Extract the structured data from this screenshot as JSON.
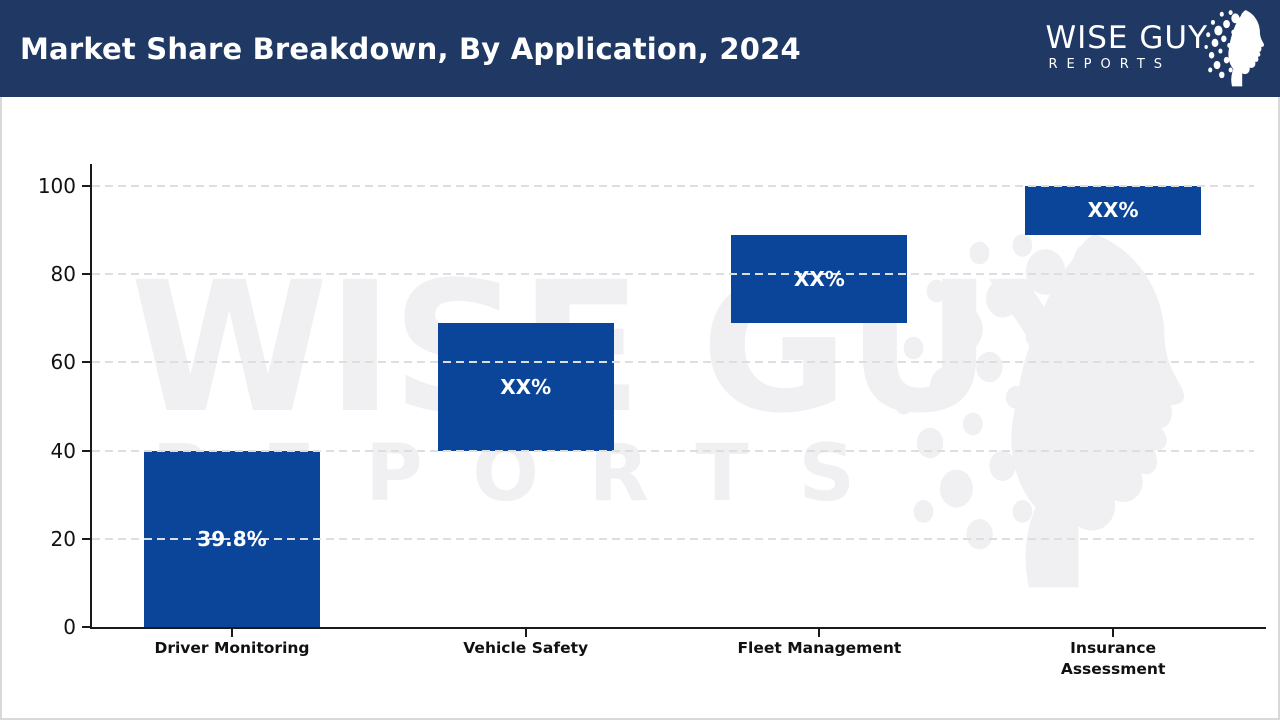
{
  "header": {
    "title": "Market Share Breakdown, By Application, 2024",
    "logo": {
      "name": "WISE GUY",
      "sub": "REPORTS"
    }
  },
  "watermark": {
    "line1": "WISE GUY",
    "line2": "REPORTS"
  },
  "chart_data": {
    "type": "bar",
    "subtype": "waterfall",
    "title": "Market Share Breakdown, By Application, 2024",
    "categories": [
      "Driver Monitoring",
      "Vehicle Safety",
      "Fleet Management",
      "Insurance Assessment"
    ],
    "segments": [
      {
        "category": "Driver Monitoring",
        "start": 0,
        "end": 39.8,
        "label": "39.8%"
      },
      {
        "category": "Vehicle Safety",
        "start": 39.8,
        "end": 69,
        "label": "XX%"
      },
      {
        "category": "Fleet Management",
        "start": 69,
        "end": 89,
        "label": "XX%"
      },
      {
        "category": "Insurance Assessment",
        "start": 89,
        "end": 100,
        "label": "XX%"
      }
    ],
    "ylim": [
      0,
      100
    ],
    "yticks": [
      0,
      20,
      40,
      60,
      80,
      100
    ],
    "xlabel": "",
    "ylabel": "",
    "grid": "horizontal-dashed",
    "bar_color": "#0B4599",
    "value_label_color": "#ffffff",
    "header_color": "#1F3864"
  }
}
